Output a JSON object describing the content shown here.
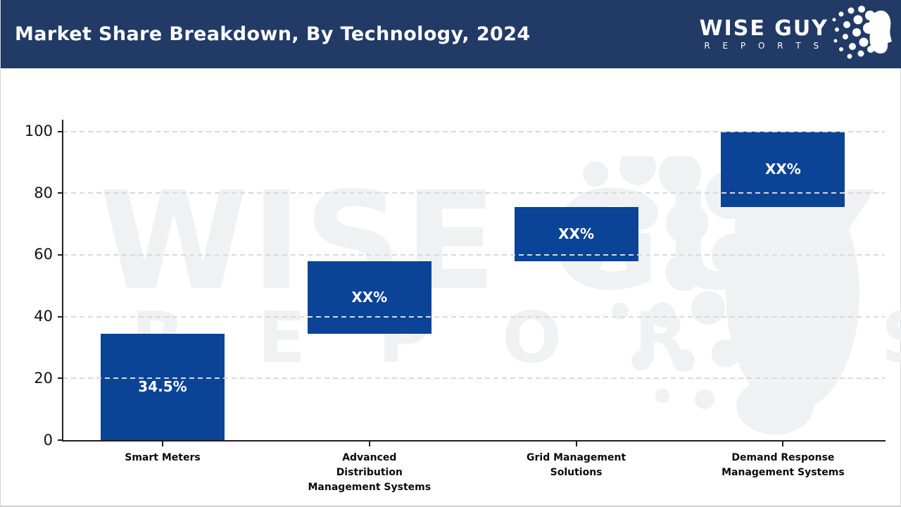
{
  "header": {
    "title": "Market Share Breakdown, By Technology, 2024",
    "logo": {
      "line1": "WISE GUY",
      "line2": "R E P O R T S"
    }
  },
  "watermark": {
    "line1": "WISE GUY",
    "line2": "R E P O R T S"
  },
  "colors": {
    "header_bg": "#213a66",
    "bar": "#0b4396",
    "bar_label": "#ffffff",
    "grid": "#d9d9d9",
    "axis": "#1f1f1f",
    "watermark": "#f0f1f3"
  },
  "chart_data": {
    "type": "bar",
    "subtype": "waterfall",
    "title": "Market Share Breakdown, By Technology, 2024",
    "xlabel": "",
    "ylabel": "",
    "ylim": [
      0,
      100
    ],
    "yticks": [
      0,
      20,
      40,
      60,
      80,
      100
    ],
    "grid": "horizontal-dashed",
    "legend": "none",
    "categories": [
      "Smart Meters",
      "Advanced Distribution Management Systems",
      "Grid Management Solutions",
      "Demand Response Management Systems"
    ],
    "category_lines": [
      [
        "Smart Meters"
      ],
      [
        "Advanced",
        "Distribution",
        "Management Systems"
      ],
      [
        "Grid Management",
        "Solutions"
      ],
      [
        "Demand Response",
        "Management Systems"
      ]
    ],
    "segments": [
      {
        "category": "Smart Meters",
        "start": 0,
        "end": 34.5,
        "height": 34.5,
        "value_label": "34.5%"
      },
      {
        "category": "Advanced Distribution Management Systems",
        "start": 34.5,
        "end": 58,
        "height": 23.5,
        "value_label": "XX%"
      },
      {
        "category": "Grid Management Solutions",
        "start": 58,
        "end": 75.5,
        "height": 17.5,
        "value_label": "XX%"
      },
      {
        "category": "Demand Response Management Systems",
        "start": 75.5,
        "end": 100,
        "height": 24.5,
        "value_label": "XX%"
      }
    ]
  }
}
